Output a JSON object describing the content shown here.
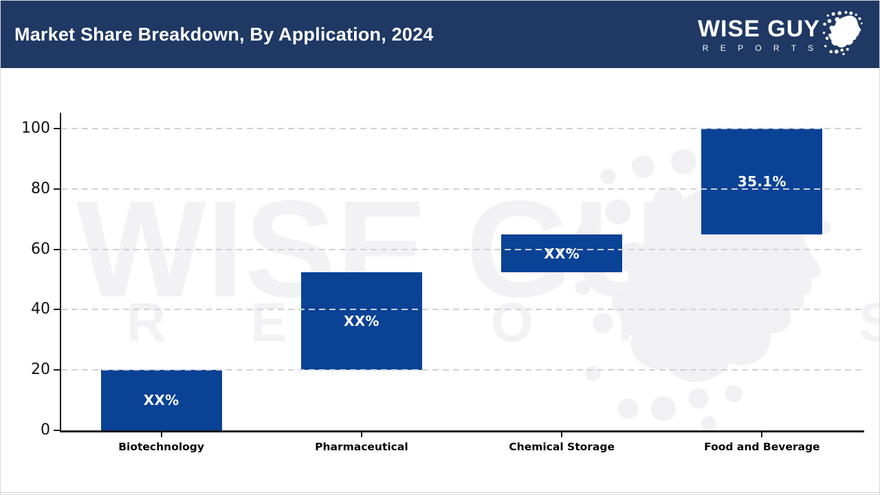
{
  "header": {
    "title": "Market Share Breakdown, By Application, 2024",
    "logo": {
      "line1": "WISE GUY",
      "line2": "R E P O R T S"
    }
  },
  "watermark": {
    "line1": "WISE GUY",
    "line2": "R E P O R T S"
  },
  "colors": {
    "header_bg": "#1f3864",
    "bar": "#0a4296",
    "grid": "#ced2d8",
    "axis": "#1a1a1a",
    "watermark": "#f2f2f4",
    "bar_label": "#ffffff"
  },
  "chart_data": {
    "type": "bar",
    "subtype": "waterfall",
    "title": "Market Share Breakdown, By Application, 2024",
    "categories": [
      "Biotechnology",
      "Pharmaceutical",
      "Chemical Storage",
      "Food and Beverage"
    ],
    "segments": [
      {
        "category": "Biotechnology",
        "start": 0,
        "end": 20,
        "value": 20,
        "label": "XX%"
      },
      {
        "category": "Pharmaceutical",
        "start": 20,
        "end": 52.4,
        "value": 32.4,
        "label": "XX%"
      },
      {
        "category": "Chemical Storage",
        "start": 52.4,
        "end": 64.9,
        "value": 12.5,
        "label": "XX%"
      },
      {
        "category": "Food and Beverage",
        "start": 64.9,
        "end": 100,
        "value": 35.1,
        "label": "35.1%"
      }
    ],
    "y_ticks": [
      0,
      20,
      40,
      60,
      80,
      100
    ],
    "ylim": [
      0,
      100
    ],
    "xlabel": "",
    "ylabel": "",
    "grid": "horizontal dashed",
    "legend": "none",
    "bar_color": "#0a4296",
    "value_labels_inside_bars": true
  }
}
